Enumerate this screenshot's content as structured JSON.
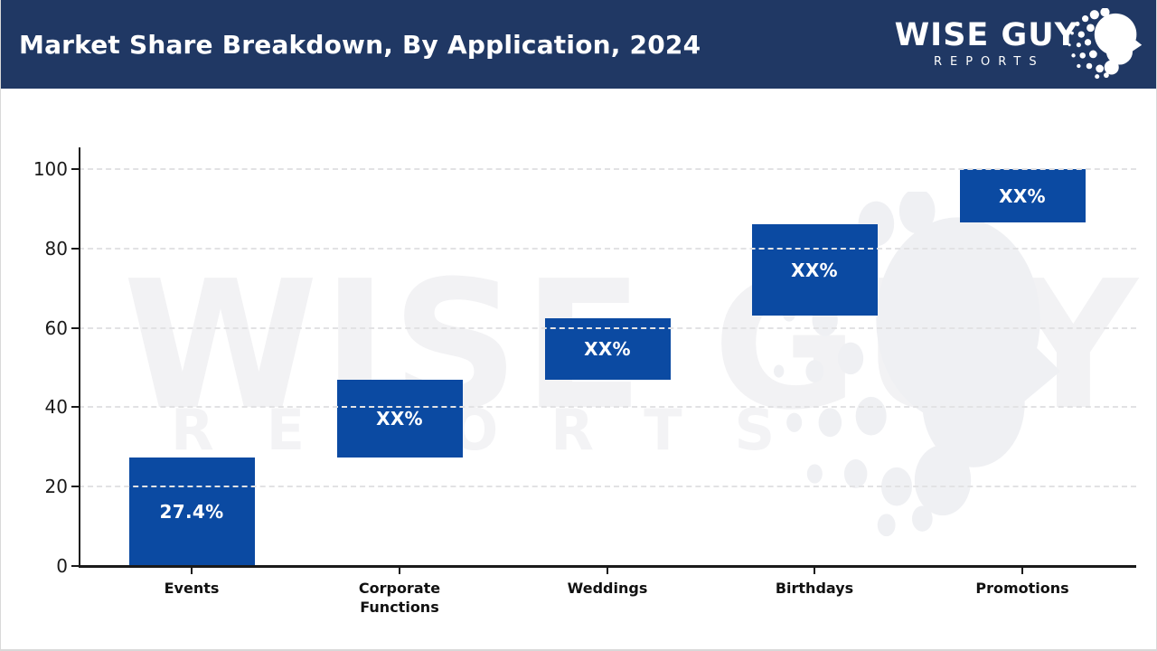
{
  "header": {
    "title": "Market Share Breakdown, By Application, 2024",
    "logo": {
      "line1": "WISE GUY",
      "line2": "REPORTS"
    }
  },
  "watermark": {
    "line1": "WISE GUY",
    "line2": "REPORTS"
  },
  "chart_data": {
    "type": "bar",
    "subtype": "waterfall",
    "title": "Market Share Breakdown, By Application, 2024",
    "categories": [
      "Events",
      "Corporate\nFunctions",
      "Weddings",
      "Birthdays",
      "Promotions"
    ],
    "segments": [
      {
        "category": "Events",
        "start": 0,
        "end": 27.4,
        "label": "27.4%"
      },
      {
        "category": "Corporate Functions",
        "start": 27.4,
        "end": 47.0,
        "label": "XX%"
      },
      {
        "category": "Weddings",
        "start": 47.0,
        "end": 62.5,
        "label": "XX%"
      },
      {
        "category": "Birthdays",
        "start": 63.0,
        "end": 86.0,
        "label": "XX%"
      },
      {
        "category": "Promotions",
        "start": 86.5,
        "end": 100,
        "label": "XX%"
      }
    ],
    "y_ticks": [
      0,
      20,
      40,
      60,
      80,
      100
    ],
    "ylim": [
      0,
      105
    ],
    "xlabel": "",
    "ylabel": "",
    "grid": "dashed-horizontal",
    "legend": "none",
    "bar_color": "#0b4aa2",
    "bar_label_color": "#ffffff"
  },
  "colors": {
    "header_bg": "#203864",
    "bar": "#0b4aa2",
    "gridline": "#e2e2e4",
    "axis": "#1a1a1a",
    "watermark": "#f2f2f4",
    "page_border": "#d9d9d9"
  }
}
